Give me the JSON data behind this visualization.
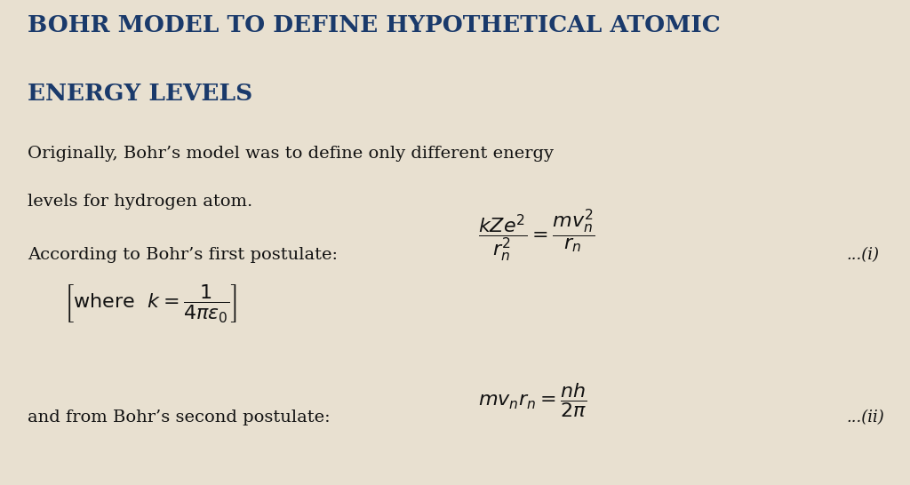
{
  "background_color": "#e8e0d0",
  "title_line1": "BOHR MODEL TO DEFINE HYPOTHETICAL ATOMIC",
  "title_line2": "ENERGY LEVELS",
  "title_color": "#1a3a6b",
  "body_color": "#111111",
  "figsize": [
    10.24,
    5.46
  ],
  "dpi": 100,
  "paragraph_line1": "Originally, Bohr’s model was to define only different energy",
  "paragraph_line2": "levels for hydrogen atom.",
  "eq1_label": "According to Bohr’s first postulate:",
  "eq1_tag": "...(i)",
  "eq2_label": "and from Bohr’s second postulate:",
  "eq2_tag": "...(ii)"
}
